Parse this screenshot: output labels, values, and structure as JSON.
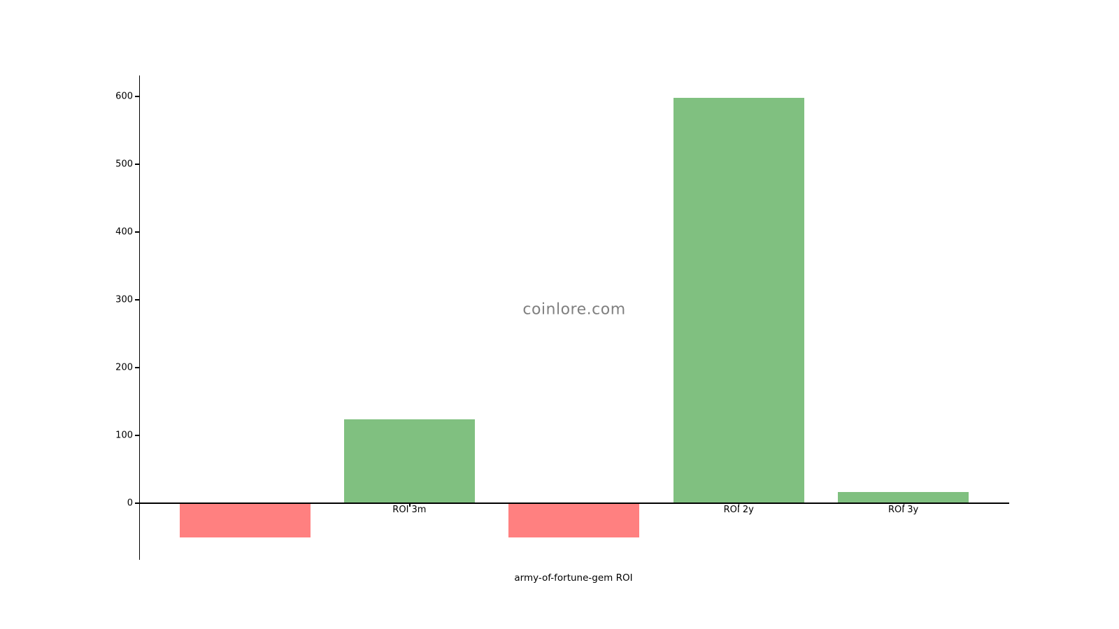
{
  "watermark": "coinlore.com",
  "footer_title": "army-of-fortune-gem ROI",
  "colors": {
    "positive_bar": "#80c080",
    "negative_bar": "#ff8080",
    "axis": "#000000",
    "watermark_text": "#7f7f7f",
    "background": "#ffffff"
  },
  "chart_data": {
    "type": "bar",
    "title": "army-of-fortune-gem ROI",
    "watermark": "coinlore.com",
    "categories": [
      "",
      "ROI 3m",
      "",
      "ROI 2y",
      "ROI 3y"
    ],
    "values": [
      -50,
      124,
      -50,
      598,
      16
    ],
    "bar_colors": [
      "#ff8080",
      "#80c080",
      "#ff8080",
      "#80c080",
      "#80c080"
    ],
    "y_ticks": [
      0,
      100,
      200,
      300,
      400,
      500,
      600
    ],
    "ylim": [
      -83,
      631
    ],
    "xlabel": "",
    "ylabel": "",
    "grid": false,
    "legend": "none",
    "note_hidden_labels": "category labels of negative (red) bars are covered by the bars themselves and not visible"
  }
}
